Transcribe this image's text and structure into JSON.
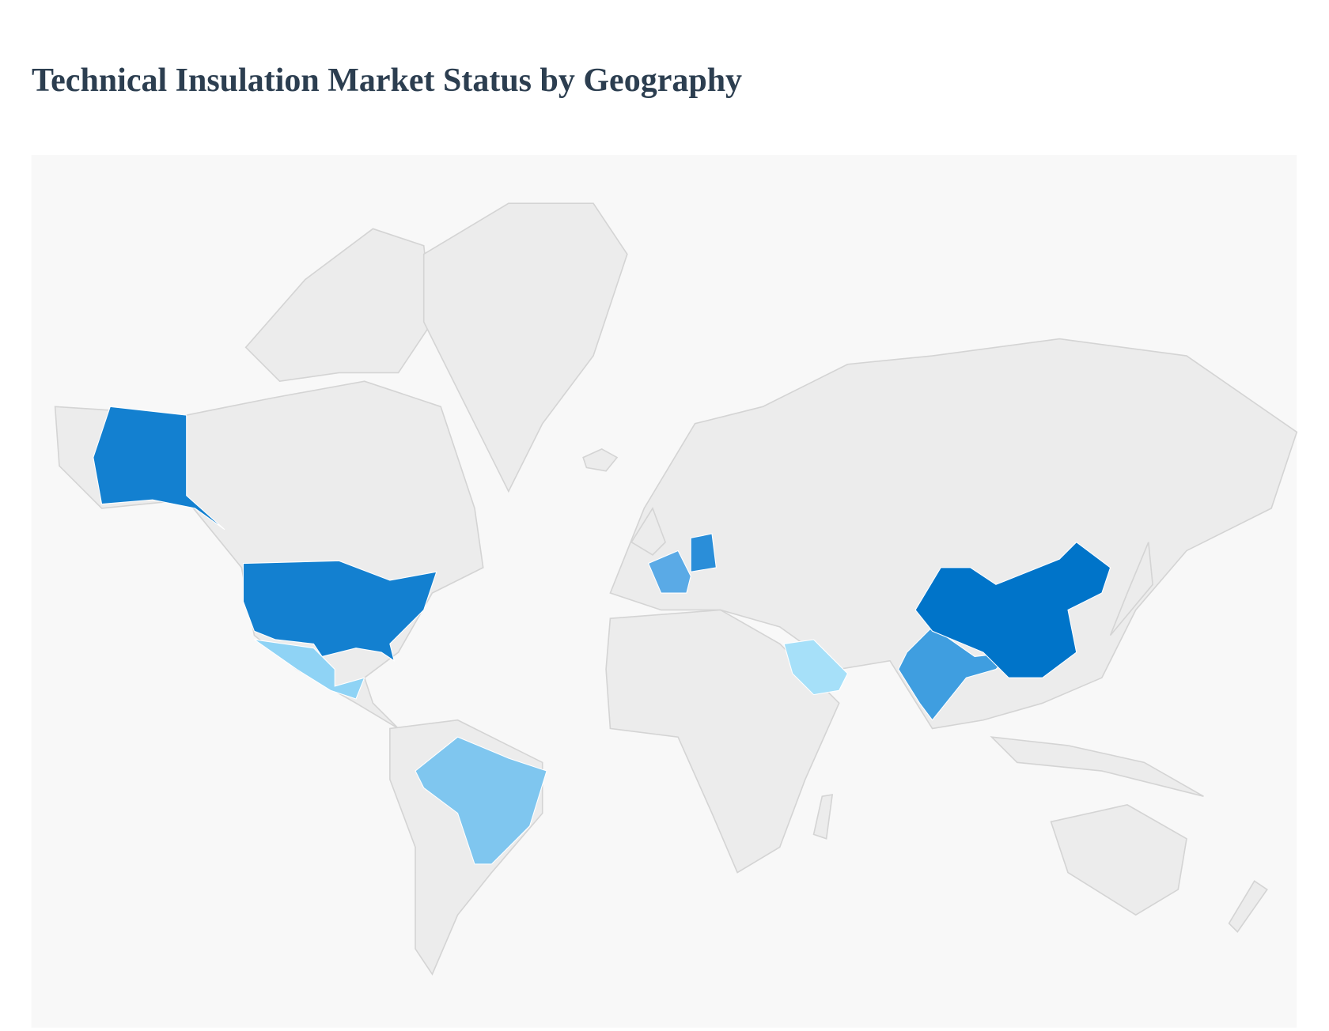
{
  "title": "Technical Insulation Market Status by Geography",
  "map": {
    "background": "#f8f8f8",
    "land_color": "#ececec",
    "border_color": "#d4d4d4",
    "highlights": [
      {
        "color": "#1380d0"
      },
      {
        "color": "#1380d0"
      },
      {
        "color": "#8fd3f5"
      },
      {
        "color": "#7fc6ef"
      },
      {
        "color": "#5aaae6"
      },
      {
        "color": "#2a8ed9"
      },
      {
        "color": "#a6e0f9"
      },
      {
        "color": "#3f9ee0"
      },
      {
        "color": "#0074c9"
      }
    ]
  }
}
